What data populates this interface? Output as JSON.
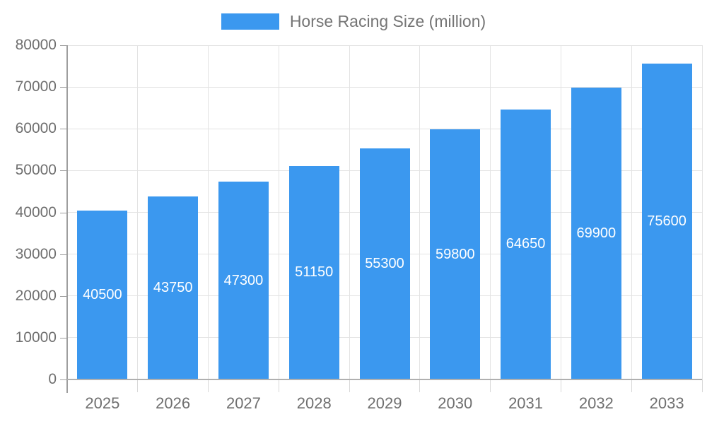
{
  "legend": {
    "label": "Horse Racing Size (million)",
    "swatch_icon": "series-color-swatch"
  },
  "colors": {
    "bar": "#3b98ef",
    "bar_label": "#ffffff",
    "legend_text": "#757575",
    "axis_text": "#6f6f6f",
    "grid": "#e3e3e3",
    "axis_line": "#9e9e9e",
    "baseline": "#b0b0b0",
    "tick_below": "#d8d8d8",
    "background": "#ffffff"
  },
  "chart_data": {
    "type": "bar",
    "title": "",
    "series": [
      {
        "name": "Horse Racing Size (million)",
        "values": [
          40500,
          43750,
          47300,
          51150,
          55300,
          59800,
          64650,
          69900,
          75600
        ]
      }
    ],
    "categories": [
      "2025",
      "2026",
      "2027",
      "2028",
      "2029",
      "2030",
      "2031",
      "2032",
      "2033"
    ],
    "value_labels": [
      "40500",
      "43750",
      "47300",
      "51150",
      "55300",
      "59800",
      "64650",
      "69900",
      "75600"
    ],
    "xlabel": "",
    "ylabel": "",
    "ylim": [
      0,
      80000
    ],
    "y_ticks": [
      0,
      10000,
      20000,
      30000,
      40000,
      50000,
      60000,
      70000,
      80000
    ],
    "y_tick_labels": [
      "0",
      "10000",
      "20000",
      "30000",
      "40000",
      "50000",
      "60000",
      "70000",
      "80000"
    ],
    "grid": true,
    "legend_position": "top-center",
    "value_labels_position": "inside-center"
  }
}
